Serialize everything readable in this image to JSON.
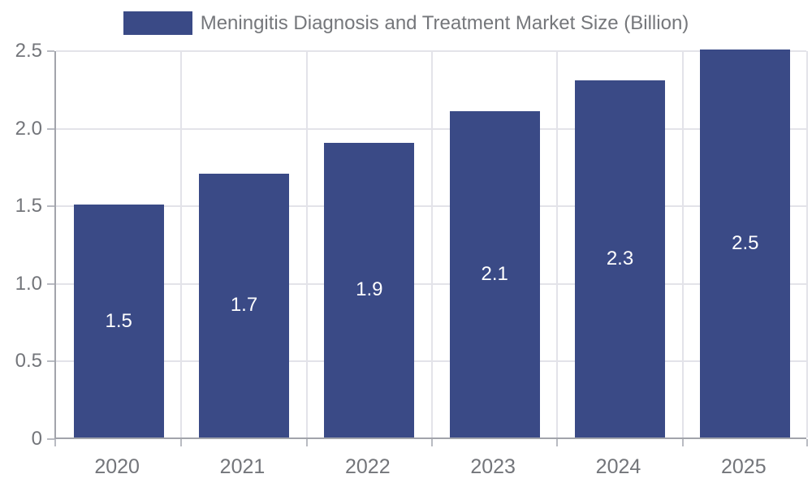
{
  "legend": {
    "label": "Meningitis Diagnosis and Treatment Market Size (Billion)"
  },
  "chart_data": {
    "type": "bar",
    "title": "Meningitis Diagnosis and Treatment Market Size (Billion)",
    "categories": [
      "2020",
      "2021",
      "2022",
      "2023",
      "2024",
      "2025"
    ],
    "series": [
      {
        "name": "Meningitis Diagnosis and Treatment Market Size (Billion)",
        "values": [
          1.5,
          1.7,
          1.9,
          2.1,
          2.3,
          2.5
        ]
      }
    ],
    "value_labels": [
      "1.5",
      "1.7",
      "1.9",
      "2.1",
      "2.3",
      "2.5"
    ],
    "value_label_position": "inside-center",
    "xlabel": "",
    "ylabel": "",
    "ylim": [
      0,
      2.5
    ],
    "yticks": [
      0,
      0.5,
      1.0,
      1.5,
      2.0,
      2.5
    ],
    "ytick_labels": [
      "0",
      "0.5",
      "1.0",
      "1.5",
      "2.0",
      "2.5"
    ],
    "grid": true,
    "legend_position": "top-center",
    "colors": {
      "bar": "#3A4A86",
      "value_label": "#FFFFFF",
      "axis_line": "#A2A4AB",
      "axis_tick": "#B9BBC2",
      "axis_label": "#73757A",
      "legend_text": "#75777B",
      "gridline": "#E3E3E9",
      "background": "#FFFFFF"
    }
  }
}
